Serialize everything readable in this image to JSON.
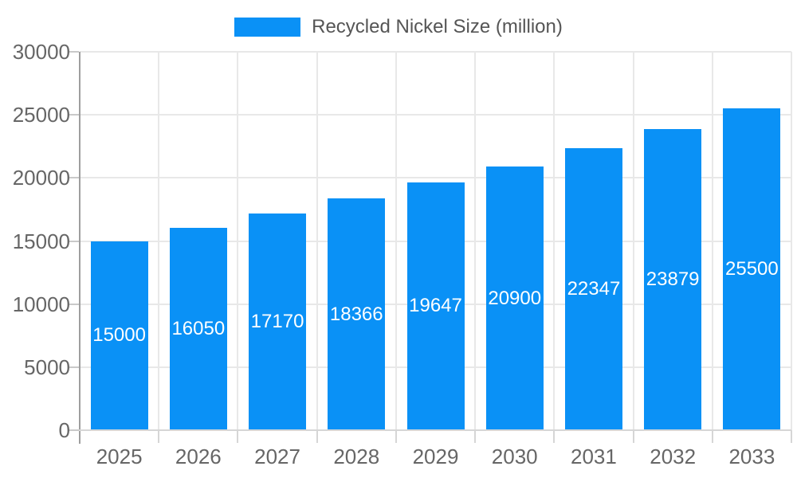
{
  "chart_data": {
    "type": "bar",
    "title": "Recycled Nickel Size (million)",
    "legend_position": "top",
    "categories": [
      "2025",
      "2026",
      "2027",
      "2028",
      "2029",
      "2030",
      "2031",
      "2032",
      "2033"
    ],
    "series": [
      {
        "name": "Recycled Nickel Size (million)",
        "values": [
          15000,
          16050,
          17170,
          18366,
          19647,
          20900,
          22347,
          23879,
          25500
        ]
      }
    ],
    "data_labels_visible": true,
    "xlabel": "",
    "ylabel": "",
    "ylim": [
      0,
      30000
    ],
    "y_ticks": [
      0,
      5000,
      10000,
      15000,
      20000,
      25000,
      30000
    ],
    "grid": true,
    "colors": {
      "bar": "#0a91f6",
      "bar_label_text": "#ffffff",
      "gridline": "#e8e8e8",
      "y_axis_line": "#9e9e9e",
      "x_axis_line": "#d6d6d6",
      "y_tick": "#c9c9c9",
      "x_tick": "#d6d6d6",
      "axis_text": "#666666",
      "legend_text": "#555555",
      "background": "#ffffff"
    }
  }
}
